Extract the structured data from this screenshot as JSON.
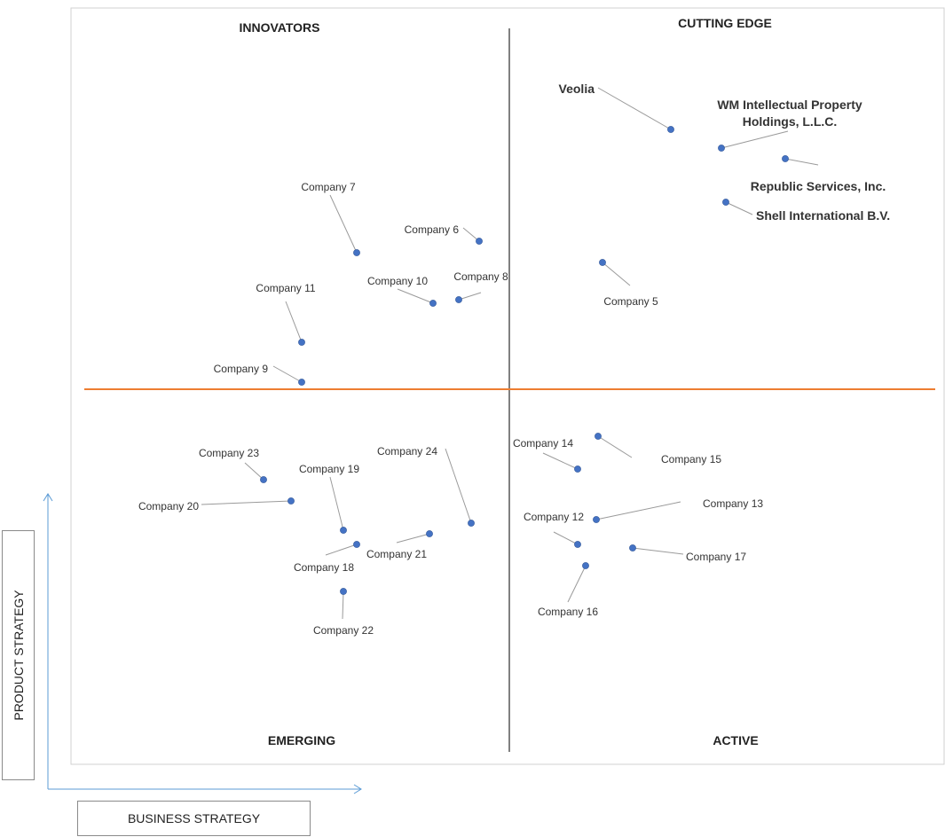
{
  "axes": {
    "y_label": "PRODUCT STRATEGY",
    "x_label": "BUSINESS STRATEGY"
  },
  "quadrants": {
    "top_left": "INNOVATORS",
    "top_right": "CUTTING EDGE",
    "bottom_left": "EMERGING",
    "bottom_right": "ACTIVE"
  },
  "colors": {
    "point": "#4472c4",
    "leader": "#9a9a9a",
    "horizontal_divider": "#ed7d31",
    "vertical_divider": "#808080",
    "frame": "#d0d0d0"
  },
  "chart_data": {
    "type": "scatter",
    "xlabel": "BUSINESS STRATEGY",
    "ylabel": "PRODUCT STRATEGY",
    "points": [
      {
        "name": "Veolia",
        "x": 7.6,
        "y": 8.4,
        "major": true
      },
      {
        "name": "WM Intellectual Property Holdings, L.L.C.",
        "x": 8.2,
        "y": 8.1,
        "major": true
      },
      {
        "name": "Republic Services, Inc.",
        "x": 8.9,
        "y": 8.0,
        "major": true
      },
      {
        "name": "Shell International B.V.",
        "x": 8.3,
        "y": 7.5,
        "major": true
      },
      {
        "name": "Company 5",
        "x": 6.8,
        "y": 6.8
      },
      {
        "name": "Company 6",
        "x": 5.4,
        "y": 7.2
      },
      {
        "name": "Company 7",
        "x": 3.5,
        "y": 7.0
      },
      {
        "name": "Company 8",
        "x": 4.6,
        "y": 6.3
      },
      {
        "name": "Company 9",
        "x": 2.8,
        "y": 5.1
      },
      {
        "name": "Company 10",
        "x": 4.3,
        "y": 6.2
      },
      {
        "name": "Company 11",
        "x": 2.8,
        "y": 5.6
      },
      {
        "name": "Company 12",
        "x": 6.5,
        "y": 2.7
      },
      {
        "name": "Company 13",
        "x": 6.8,
        "y": 3.0
      },
      {
        "name": "Company 14",
        "x": 6.5,
        "y": 3.7
      },
      {
        "name": "Company 15",
        "x": 6.7,
        "y": 4.0
      },
      {
        "name": "Company 16",
        "x": 6.6,
        "y": 2.4
      },
      {
        "name": "Company 17",
        "x": 7.2,
        "y": 2.6
      },
      {
        "name": "Company 18",
        "x": 3.5,
        "y": 2.7
      },
      {
        "name": "Company 19",
        "x": 3.3,
        "y": 2.9
      },
      {
        "name": "Company 20",
        "x": 2.6,
        "y": 3.3
      },
      {
        "name": "Company 21",
        "x": 4.2,
        "y": 2.9
      },
      {
        "name": "Company 22",
        "x": 3.3,
        "y": 2.1
      },
      {
        "name": "Company 23",
        "x": 2.4,
        "y": 3.6
      },
      {
        "name": "Company 24",
        "x": 4.8,
        "y": 3.0
      }
    ]
  }
}
